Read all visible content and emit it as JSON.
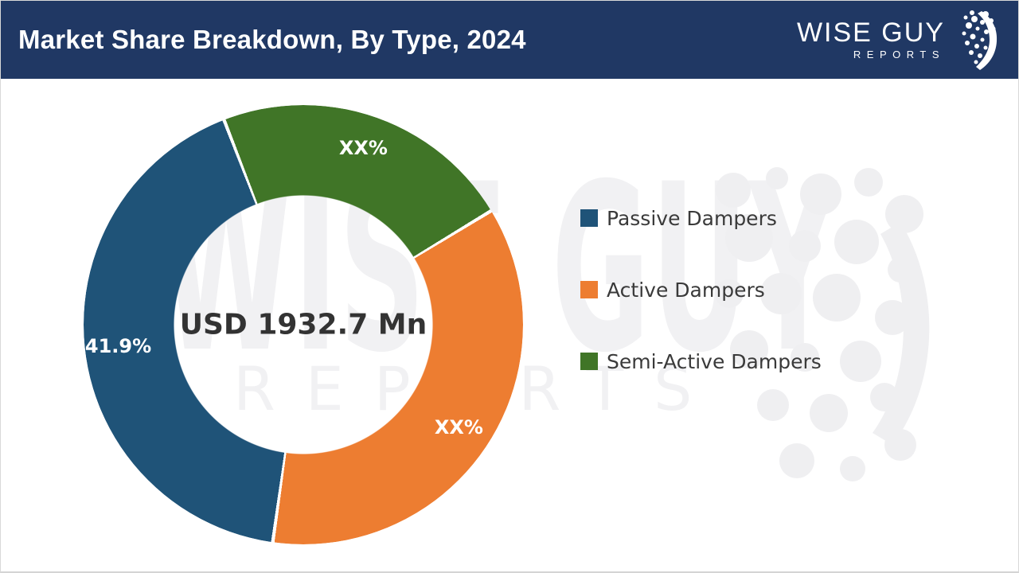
{
  "header": {
    "title": "Market Share Breakdown, By Type, 2024",
    "logo": {
      "wordmark": "WISE GUY",
      "subtext": "REPORTS"
    }
  },
  "chart_data": {
    "type": "pie",
    "donut": true,
    "title": "Market Share Breakdown, By Type, 2024",
    "center_label": "USD 1932.7 Mn",
    "categories": [
      "Passive Dampers",
      "Active Dampers",
      "Semi-Active Dampers"
    ],
    "values": [
      41.9,
      35.9,
      22.2
    ],
    "slice_labels": [
      "41.9%",
      "XX%",
      "XX%"
    ],
    "colors": [
      "#1F5378",
      "#ED7D31",
      "#407527"
    ],
    "start_angle_deg": 188,
    "draw_order": [
      0,
      2,
      1
    ],
    "legend_position": "right"
  },
  "watermark": {
    "line1": "WISE GUY",
    "line2": "REPORTS"
  },
  "colors": {
    "header_bg": "#203864",
    "slice_label_text": "#FFFFFF",
    "center_text": "#333333",
    "legend_text": "#3A3A3A",
    "watermark": "#F1F1F3",
    "page_border": "#D9D9D9"
  }
}
